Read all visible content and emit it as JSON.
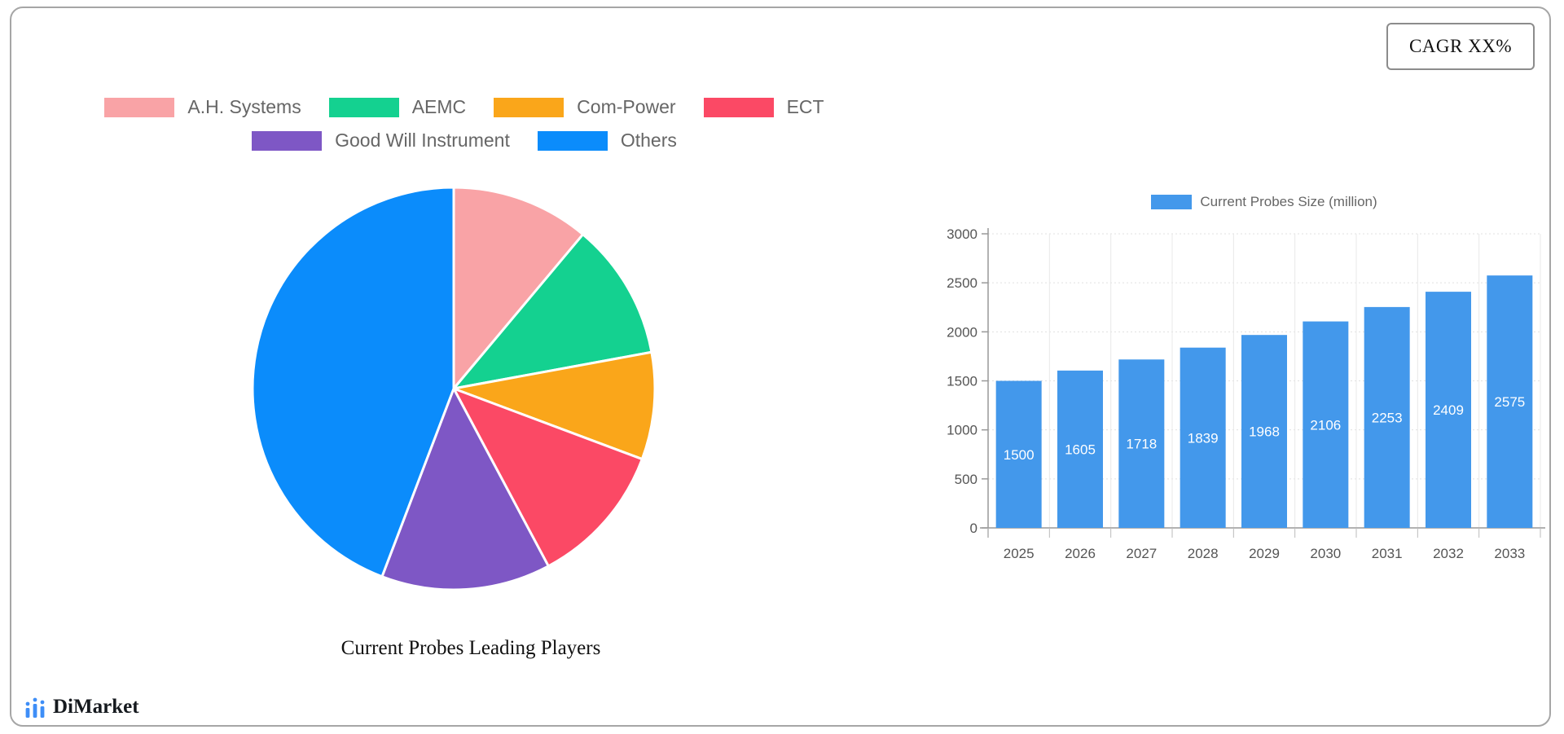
{
  "card": {
    "cagr_label": "CAGR XX%"
  },
  "branding": {
    "logo_icon": "bar-chart-logo-icon",
    "logo_text": "DiMarket",
    "logo_color": "#3E8EF7"
  },
  "colors": {
    "card_border": "#a6a6a6",
    "legend_text": "#666666",
    "axis_text": "#555555",
    "grid_line": "#e0e0e0",
    "axis_line": "#999999",
    "value_label_text": "#ffffff"
  },
  "chart_data": [
    {
      "type": "pie",
      "title": "Current Probes Leading Players",
      "labels": [
        "A.H. Systems",
        "AEMC",
        "Com-Power",
        "ECT",
        "Good Will Instrument",
        "Others"
      ],
      "values": [
        11.1,
        11.0,
        8.6,
        11.5,
        13.6,
        44.2
      ],
      "colors": [
        "#F9A3A6",
        "#14D190",
        "#FAA61A",
        "#FB4965",
        "#7E57C5",
        "#0B8CFB"
      ],
      "legend_position": "top",
      "legend_rows": [
        [
          0,
          1,
          2,
          3
        ],
        [
          4,
          5
        ]
      ],
      "start_angle_deg": 0,
      "direction": "clockwise",
      "slice_stroke": "#ffffff"
    },
    {
      "type": "bar",
      "legend": "Current Probes Size (million)",
      "categories": [
        "2025",
        "2026",
        "2027",
        "2028",
        "2029",
        "2030",
        "2031",
        "2032",
        "2033"
      ],
      "values": [
        1500,
        1605,
        1718,
        1839,
        1968,
        2106,
        2253,
        2409,
        2575
      ],
      "bar_color": "#4398EB",
      "value_label_color": "#ffffff",
      "xlabel": "",
      "ylabel": "",
      "ylim": [
        0,
        3000
      ],
      "yticks": [
        0,
        500,
        1000,
        1500,
        2000,
        2500,
        3000
      ],
      "grid": true,
      "legend_position": "top"
    }
  ]
}
